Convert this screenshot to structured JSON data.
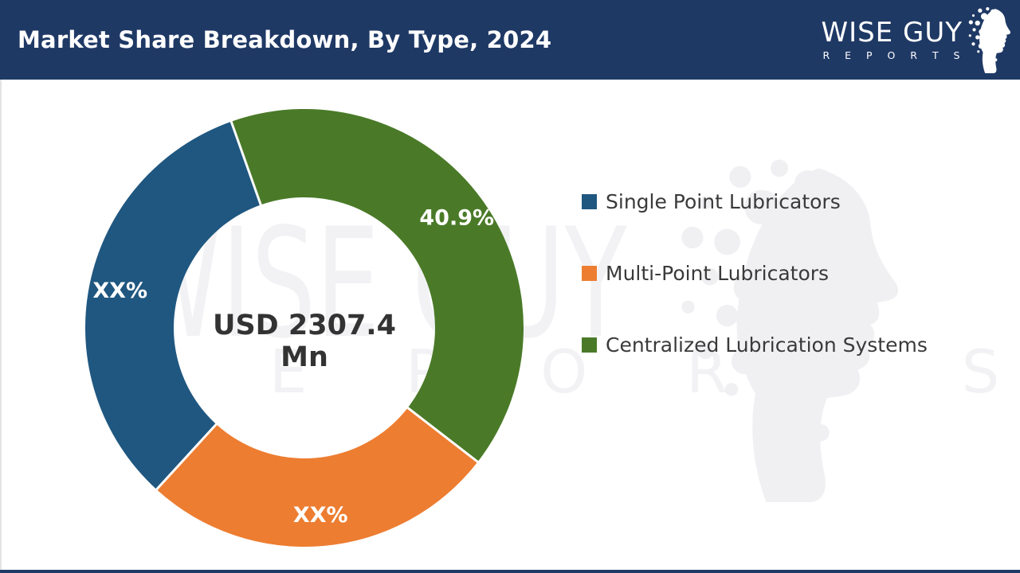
{
  "header": {
    "title": "Market Share Breakdown, By Type, 2024",
    "logo": {
      "line1": "WISE GUY",
      "line2": "R E P O R T S"
    }
  },
  "watermark": {
    "line1": "WISE GUY",
    "line2": "R E P O R T S"
  },
  "chart_data": {
    "type": "pie",
    "subtype": "donut",
    "title": "Market Share Breakdown, By Type, 2024",
    "center_label": "USD 2307.4 Mn",
    "start_angle_deg": -19.5,
    "legend_position": "right",
    "slices": [
      {
        "name": "Centralized Lubrication Systems",
        "label": "40.9%",
        "value_pct": 40.9,
        "color": "#4A7A28"
      },
      {
        "name": "Multi-Point Lubricators",
        "label": "XX%",
        "value_pct": 26.3,
        "color": "#ED7D31"
      },
      {
        "name": "Single Point Lubricators",
        "label": "XX%",
        "value_pct": 32.8,
        "color": "#1F5780"
      }
    ]
  },
  "legend": {
    "items": [
      {
        "label": "Single Point Lubricators",
        "color": "#1F5780"
      },
      {
        "label": "Multi-Point Lubricators",
        "color": "#ED7D31"
      },
      {
        "label": "Centralized Lubrication Systems",
        "color": "#4A7A28"
      }
    ]
  },
  "colors": {
    "header_bg": "#1F3965",
    "watermark": "#F2F2F5",
    "center_text": "#333333"
  }
}
